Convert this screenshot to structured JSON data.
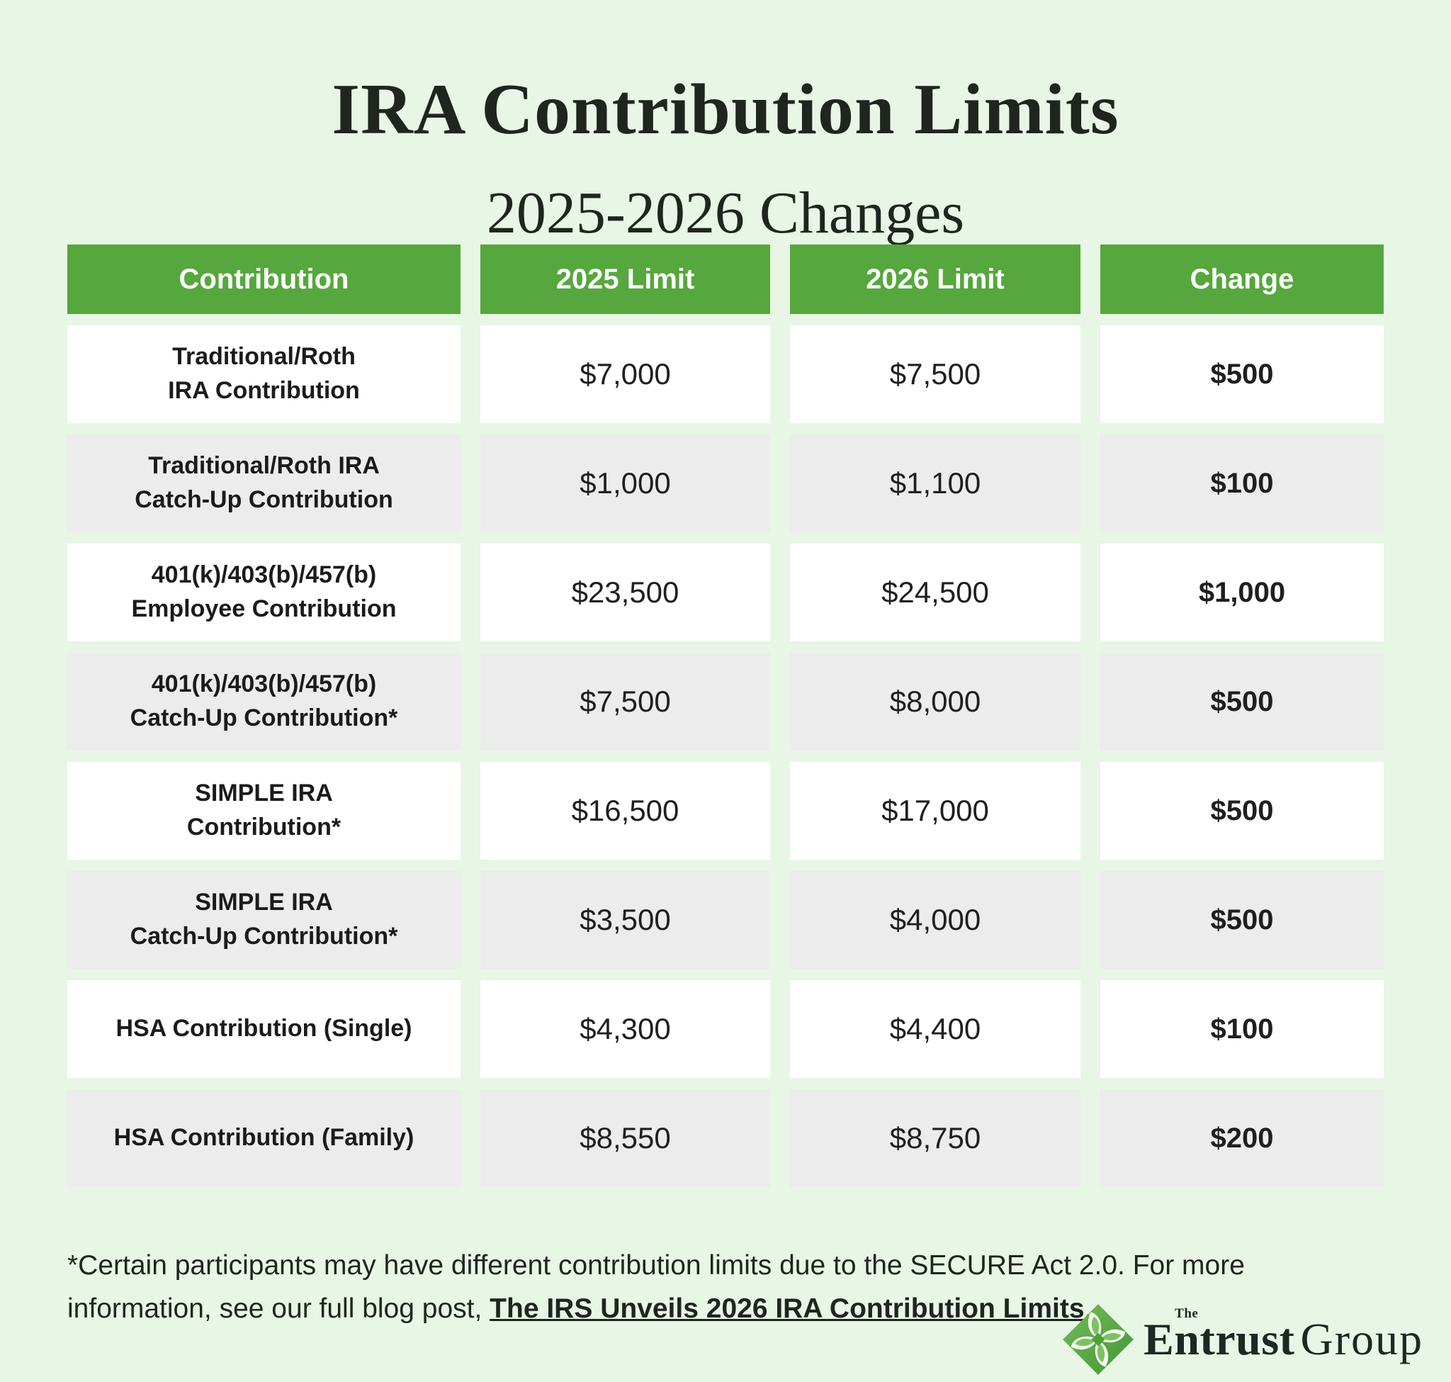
{
  "page": {
    "title": "IRA Contribution Limits",
    "subtitle": "2025-2026 Changes"
  },
  "table": {
    "headers": [
      "Contribution",
      "2025 Limit",
      "2026 Limit",
      "Change"
    ],
    "rows": [
      {
        "contribution": "Traditional/Roth\nIRA Contribution",
        "limit_2025": "$7,000",
        "limit_2026": "$7,500",
        "change": "$500"
      },
      {
        "contribution": "Traditional/Roth IRA\nCatch-Up Contribution",
        "limit_2025": "$1,000",
        "limit_2026": "$1,100",
        "change": "$100"
      },
      {
        "contribution": "401(k)/403(b)/457(b)\nEmployee Contribution",
        "limit_2025": "$23,500",
        "limit_2026": "$24,500",
        "change": "$1,000"
      },
      {
        "contribution": "401(k)/403(b)/457(b)\nCatch-Up Contribution*",
        "limit_2025": "$7,500",
        "limit_2026": "$8,000",
        "change": "$500"
      },
      {
        "contribution": "SIMPLE IRA\nContribution*",
        "limit_2025": "$16,500",
        "limit_2026": "$17,000",
        "change": "$500"
      },
      {
        "contribution": "SIMPLE IRA\nCatch-Up Contribution*",
        "limit_2025": "$3,500",
        "limit_2026": "$4,000",
        "change": "$500"
      },
      {
        "contribution": "HSA Contribution (Single)",
        "limit_2025": "$4,300",
        "limit_2026": "$4,400",
        "change": "$100"
      },
      {
        "contribution": "HSA Contribution (Family)",
        "limit_2025": "$8,550",
        "limit_2026": "$8,750",
        "change": "$200"
      }
    ]
  },
  "footnote": {
    "line1": "*Certain participants may have different contribution limits due to the SECURE Act 2.0. For more",
    "line2_prefix": "information, see our full blog post, ",
    "link_text": "The IRS Unveils 2026 IRA Contribution Limits",
    "suffix": "."
  },
  "logo": {
    "the": "The",
    "name": "Entrust",
    "suffix": "Group"
  },
  "colors": {
    "background": "#e8f6e5",
    "header_green": "#56a73d",
    "row_gray": "#ececec",
    "row_white": "#ffffff",
    "text_dark": "#1e261e"
  },
  "chart_data": {
    "type": "table",
    "title": "IRA Contribution Limits 2025-2026 Changes",
    "columns": [
      "Contribution",
      "2025 Limit",
      "2026 Limit",
      "Change"
    ],
    "rows": [
      [
        "Traditional/Roth IRA Contribution",
        7000,
        7500,
        500
      ],
      [
        "Traditional/Roth IRA Catch-Up Contribution",
        1000,
        1100,
        100
      ],
      [
        "401(k)/403(b)/457(b) Employee Contribution",
        23500,
        24500,
        1000
      ],
      [
        "401(k)/403(b)/457(b) Catch-Up Contribution*",
        7500,
        8000,
        500
      ],
      [
        "SIMPLE IRA Contribution*",
        16500,
        17000,
        500
      ],
      [
        "SIMPLE IRA Catch-Up Contribution*",
        3500,
        4000,
        500
      ],
      [
        "HSA Contribution (Single)",
        4300,
        4400,
        100
      ],
      [
        "HSA Contribution (Family)",
        8550,
        8750,
        200
      ]
    ],
    "notes": "*Certain participants may have different contribution limits due to the SECURE Act 2.0."
  }
}
